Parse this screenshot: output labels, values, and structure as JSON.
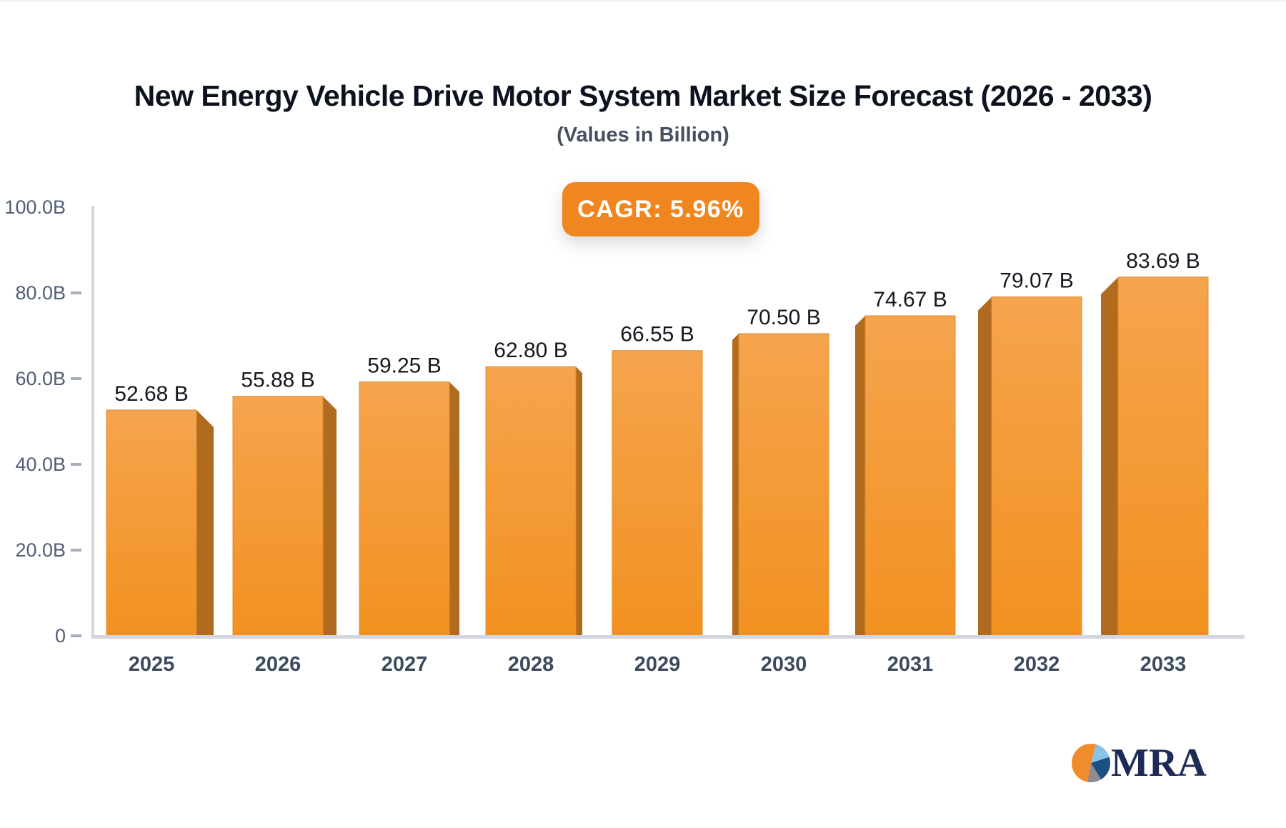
{
  "header": {
    "title": "New Energy Vehicle Drive Motor System Market Size Forecast (2026 - 2033)",
    "subtitle": "(Values in Billion)"
  },
  "badge": {
    "label": "CAGR: 5.96%"
  },
  "chart_data": {
    "type": "bar",
    "title": "New Energy Vehicle Drive Motor System Market Size Forecast (2026 - 2033)",
    "subtitle": "(Values in Billion)",
    "cagr_label": "CAGR: 5.96%",
    "categories": [
      "2025",
      "2026",
      "2027",
      "2028",
      "2029",
      "2030",
      "2031",
      "2032",
      "2033"
    ],
    "values": [
      52.68,
      55.88,
      59.25,
      62.8,
      66.55,
      70.5,
      74.67,
      79.07,
      83.69
    ],
    "value_labels": [
      "52.68 B",
      "55.88 B",
      "59.25 B",
      "62.80 B",
      "66.55 B",
      "70.50 B",
      "74.67 B",
      "79.07 B",
      "83.69 B"
    ],
    "unit": "Billion",
    "ylim": [
      0,
      100
    ],
    "yticks": [
      {
        "label": "100.0B",
        "value": 100,
        "dash": false
      },
      {
        "label": "80.0B",
        "value": 80,
        "dash": true
      },
      {
        "label": "60.0B",
        "value": 60,
        "dash": true
      },
      {
        "label": "40.0B",
        "value": 40,
        "dash": true
      },
      {
        "label": "20.0B",
        "value": 20,
        "dash": true
      },
      {
        "label": "0",
        "value": 0,
        "dash": true
      }
    ],
    "grid": false,
    "legend": "none",
    "bar_style": "3d-beveled",
    "colors": {
      "bar_front_top": "#f5a44e",
      "bar_front_bottom": "#f29120",
      "bar_front_stroke": "#e08c2e",
      "bar_side": "#b16b1e",
      "axis": "#d3d6de",
      "tick_dash": "#a6adbb",
      "y_label": "#515e76",
      "x_label": "#3d4a5e",
      "value_label": "#15181f",
      "badge_bg": "#f0861f",
      "badge_text": "#ffffff"
    }
  },
  "logo": {
    "text": "MRA",
    "colors": {
      "text": "#1e2b56",
      "pie_orange": "#ef8d2e",
      "pie_lightblue": "#8ac2e6",
      "pie_navy": "#1c4f83",
      "pie_gray": "#8f8c90"
    }
  }
}
